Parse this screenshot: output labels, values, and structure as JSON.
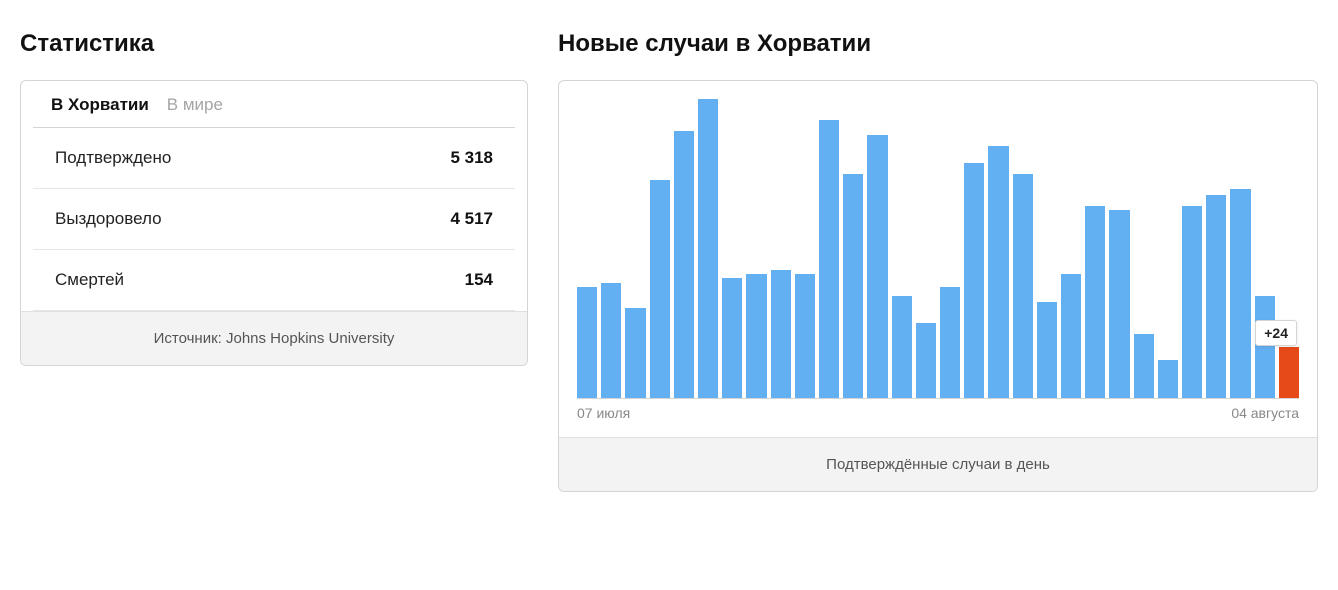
{
  "stats": {
    "title": "Статистика",
    "tabs": {
      "active": "В Хорватии",
      "inactive": "В мире"
    },
    "rows": [
      {
        "label": "Подтверждено",
        "value": "5 318"
      },
      {
        "label": "Выздоровело",
        "value": "4 517"
      },
      {
        "label": "Смертей",
        "value": "154"
      }
    ],
    "source": "Источник: Johns Hopkins University"
  },
  "chart": {
    "title": "Новые случаи в Хорватии",
    "type": "bar",
    "bar_color": "#62b0f2",
    "highlight_color": "#e64a19",
    "background_color": "#ffffff",
    "max_value": 140,
    "values": [
      52,
      54,
      42,
      102,
      125,
      140,
      56,
      58,
      60,
      58,
      130,
      105,
      123,
      48,
      35,
      52,
      110,
      118,
      105,
      45,
      58,
      90,
      88,
      30,
      18,
      90,
      95,
      98,
      48,
      24
    ],
    "highlight_index": 29,
    "tooltip_value": "+24",
    "x_axis": {
      "start": "07 июля",
      "end": "04 августа"
    },
    "footer": "Подтверждённые случаи в день",
    "bar_gap": 4
  }
}
